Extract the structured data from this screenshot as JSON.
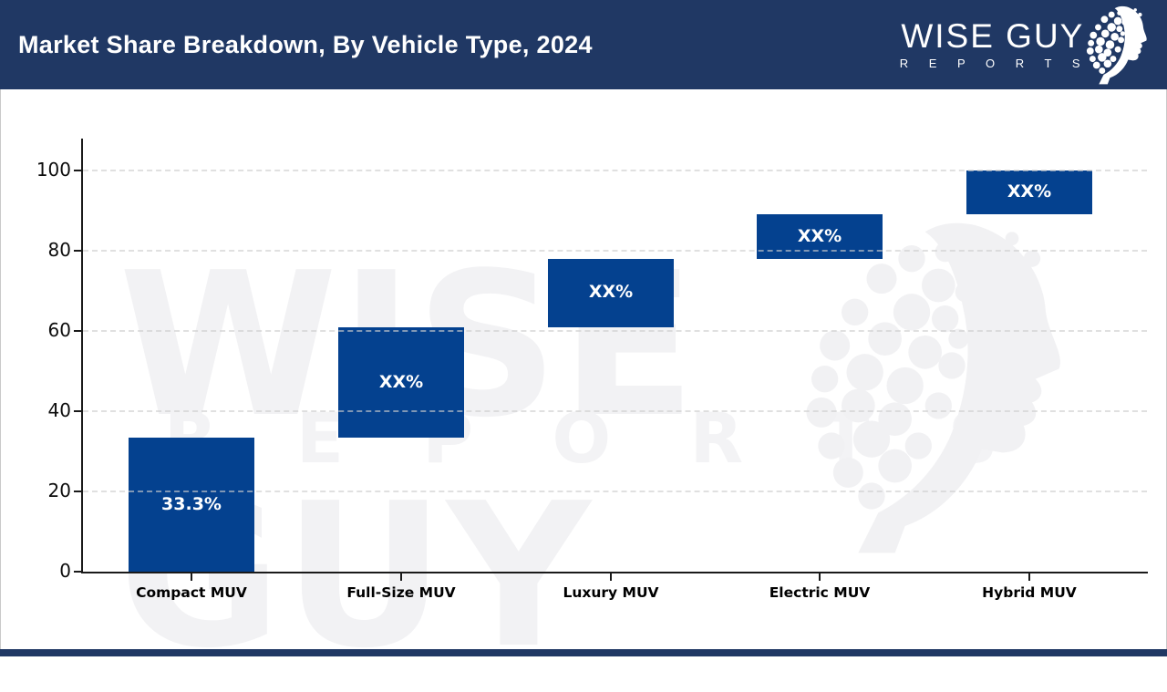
{
  "header": {
    "title": "Market Share Breakdown, By Vehicle Type, 2024",
    "background_color": "#203864",
    "logo": {
      "name": "WISE GUY",
      "sub": "R E P O R T S",
      "head_icon": "dotted-face-profile"
    }
  },
  "watermark": {
    "line1": "WISE GUY",
    "line2": "R E P O R T S",
    "head_icon": "dotted-face-profile"
  },
  "footer": {
    "background_color": "#203864"
  },
  "chart_data": {
    "type": "bar",
    "subtype": "waterfall",
    "title": "Market Share Breakdown, By Vehicle Type, 2024",
    "xlabel": "",
    "ylabel": "",
    "categories": [
      "Compact MUV",
      "Full-Size MUV",
      "Luxury MUV",
      "Electric MUV",
      "Hybrid MUV"
    ],
    "segments": [
      {
        "category": "Compact MUV",
        "start": 0,
        "end": 33.3,
        "label": "33.3%"
      },
      {
        "category": "Full-Size MUV",
        "start": 33.3,
        "end": 61,
        "label": "XX%"
      },
      {
        "category": "Luxury MUV",
        "start": 61,
        "end": 78,
        "label": "XX%"
      },
      {
        "category": "Electric MUV",
        "start": 78,
        "end": 89,
        "label": "XX%"
      },
      {
        "category": "Hybrid MUV",
        "start": 89,
        "end": 100,
        "label": "XX%"
      }
    ],
    "y_ticks": [
      0,
      20,
      40,
      60,
      80,
      100
    ],
    "ylim": [
      0,
      108
    ],
    "bar_color": "#04418f",
    "grid": "dashed-horizontal",
    "legend": "none"
  }
}
